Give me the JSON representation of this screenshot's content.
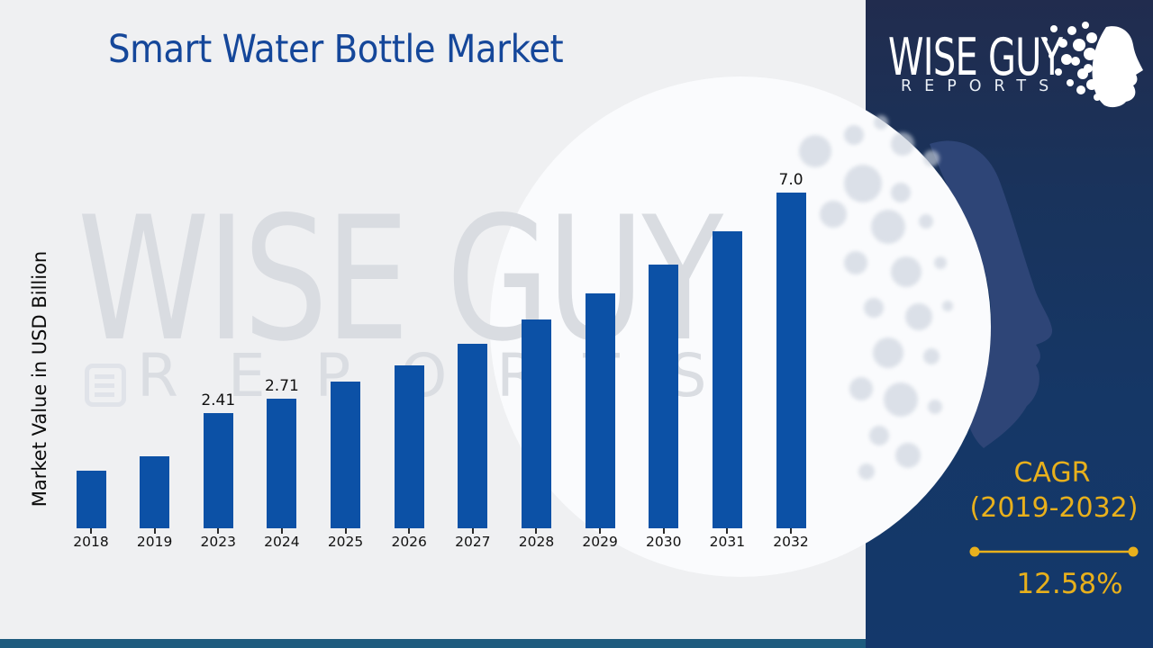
{
  "page": {
    "title": "Smart Water Bottle Market"
  },
  "chart_data": {
    "type": "bar",
    "title": "Smart Water Bottle Market",
    "xlabel": "",
    "ylabel": "Market Value in USD Billion",
    "categories": [
      "2018",
      "2019",
      "2023",
      "2024",
      "2025",
      "2026",
      "2027",
      "2028",
      "2029",
      "2030",
      "2031",
      "2032"
    ],
    "values": [
      1.2,
      1.5,
      2.41,
      2.71,
      3.05,
      3.4,
      3.85,
      4.35,
      4.9,
      5.5,
      6.2,
      7.0
    ],
    "point_labels": [
      "",
      "",
      "2.41",
      "2.71",
      "",
      "",
      "",
      "",
      "",
      "",
      "",
      "7.0"
    ],
    "ylim": [
      0,
      7.4
    ],
    "grid": "off",
    "legend": "none",
    "bar_color": "#0c51a6"
  },
  "watermark": {
    "line1": "WISE GUY",
    "line2": "REPORTS",
    "icon": "report-list-icon"
  },
  "brand": {
    "logo_line1": "WISE GUY",
    "logo_line2": "REPORTS",
    "face_icon": "face-profile-dots-icon"
  },
  "cagr": {
    "label": "CAGR",
    "range": "(2019-2032)",
    "value": "12.58%"
  },
  "colors": {
    "bar_blue": "#0c51a6",
    "title_blue": "#15479a",
    "panel_navy": "#163564",
    "face_silhouette_navy": "#2e4577",
    "accent_gold": "#e8b01c",
    "teal_strip": "#1e5b7e",
    "watermark_gray": "#d9dce1",
    "circle_white": "#fafbfd"
  }
}
